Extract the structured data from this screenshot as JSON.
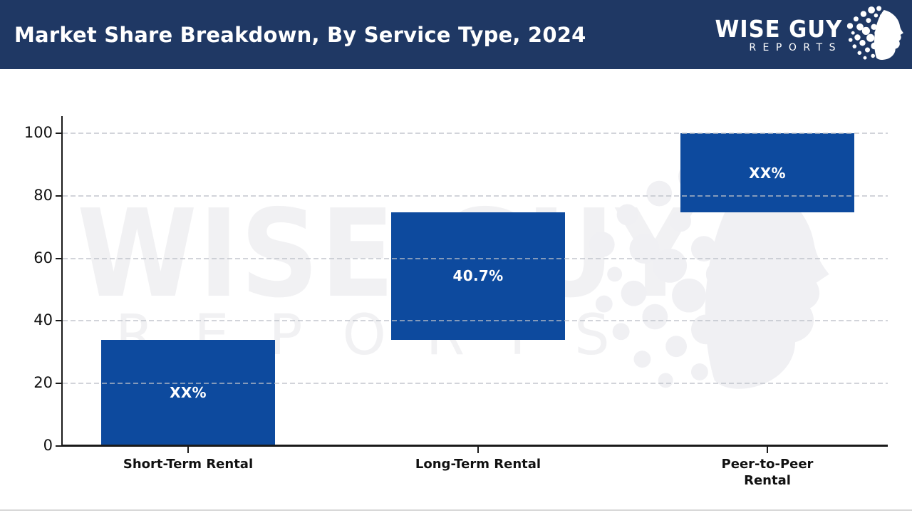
{
  "header": {
    "title": "Market Share Breakdown, By Service Type, 2024",
    "logo": {
      "line1": "WISE GUY",
      "line2": "REPORTS"
    }
  },
  "watermark": {
    "line1": "WISE GUY",
    "line2": "REPORTS"
  },
  "chart_data": {
    "type": "bar",
    "variant": "waterfall",
    "title": "Market Share Breakdown, By Service Type, 2024",
    "categories": [
      "Short-Term Rental",
      "Long-Term Rental",
      "Peer-to-Peer\nRental"
    ],
    "bars": [
      {
        "category": "Short-Term Rental",
        "start": 0,
        "end": 34,
        "label": "XX%"
      },
      {
        "category": "Long-Term Rental",
        "start": 34,
        "end": 74.7,
        "label": "40.7%"
      },
      {
        "category": "Peer-to-Peer Rental",
        "start": 74.7,
        "end": 100,
        "label": "XX%"
      }
    ],
    "ylim": [
      0,
      100
    ],
    "yticks": [
      0,
      20,
      40,
      60,
      80,
      100
    ],
    "xlabel": "",
    "ylabel": "",
    "grid": "dashed-horizontal",
    "legend": "none",
    "bar_color": "#0d4a9e",
    "label_color": "#ffffff",
    "axis_color": "#1a1a1a",
    "grid_color": "#c4c8d0",
    "header_bg": "#1f3864",
    "watermark_color": "#f1f1f3",
    "background": "#ffffff"
  }
}
